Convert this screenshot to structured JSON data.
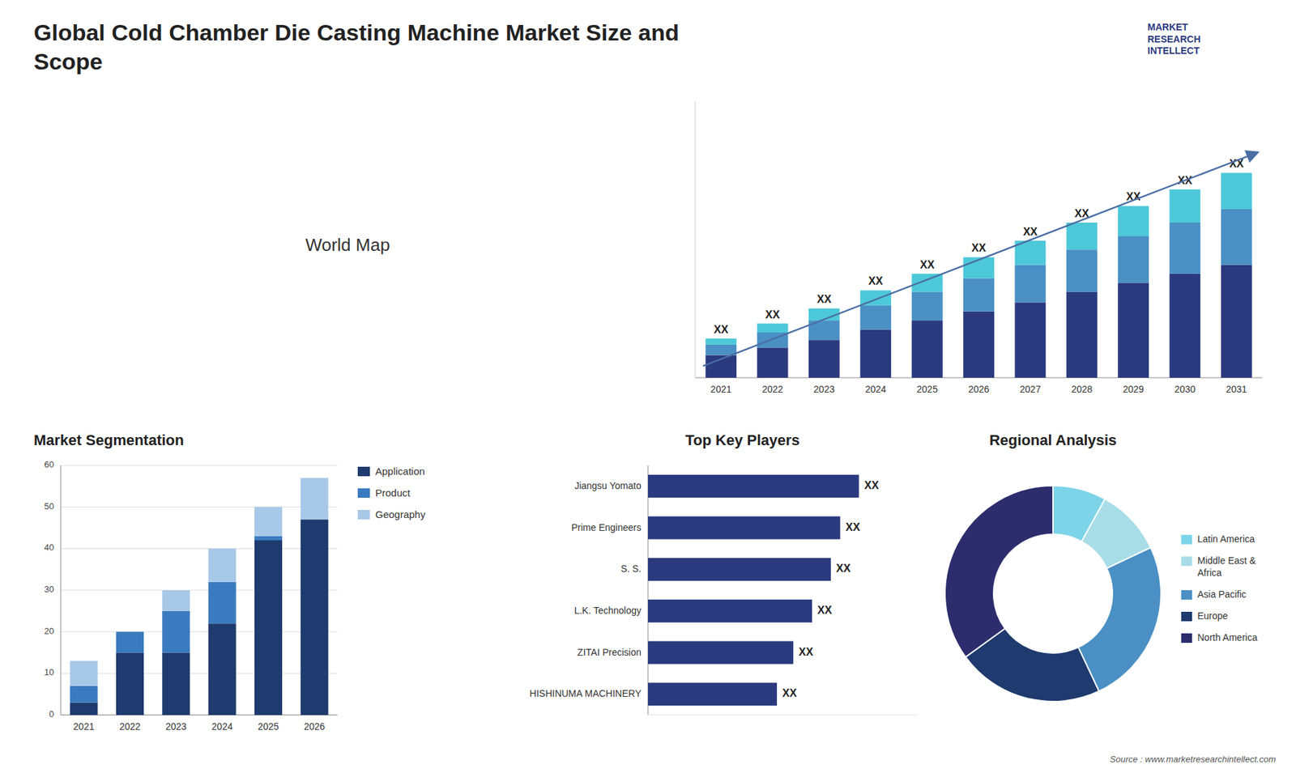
{
  "title": "Global Cold Chamber Die Casting Machine Market Size and\nScope",
  "annotations": [
    "MARKET\nRESEARCH\nINTELLECT",
    "Source : www.marketresearchintellect.com"
  ],
  "chart_data": [
    {
      "type": "map",
      "annotations": [
        "World Map"
      ]
    },
    {
      "type": "bar",
      "stacked": true,
      "categories": [
        "2021",
        "2022",
        "2023",
        "2024",
        "2025",
        "2026",
        "2027",
        "2028",
        "2029",
        "2030",
        "2031"
      ],
      "series": [
        {
          "color": "#2b3a7e",
          "values": [
            1.5,
            2.0,
            2.5,
            3.2,
            3.8,
            4.4,
            5.0,
            5.7,
            6.3,
            6.9,
            7.5
          ]
        },
        {
          "color": "#4a90c4",
          "values": [
            0.7,
            1.0,
            1.3,
            1.6,
            1.9,
            2.2,
            2.5,
            2.8,
            3.1,
            3.4,
            3.7
          ]
        },
        {
          "color": "#4dc8d8",
          "values": [
            0.4,
            0.6,
            0.8,
            1.0,
            1.2,
            1.4,
            1.6,
            1.8,
            2.0,
            2.2,
            2.4
          ]
        }
      ],
      "ylim": [
        0,
        18.36
      ],
      "tick_labels": "x",
      "grid": false,
      "annotations": [
        "XX",
        "XX",
        "XX",
        "XX",
        "XX",
        "XX",
        "XX",
        "XX",
        "XX",
        "XX",
        "XX"
      ]
    },
    {
      "type": "bar",
      "stacked": true,
      "title": "Market Segmentation",
      "categories": [
        "2021",
        "2022",
        "2023",
        "2024",
        "2025",
        "2026"
      ],
      "series": [
        {
          "name": "Application",
          "color": "#1e3a6e",
          "values": [
            3,
            15,
            15,
            22,
            42,
            47
          ]
        },
        {
          "name": "Product",
          "color": "#3a7bbf",
          "values": [
            4,
            5,
            10,
            10,
            1,
            0
          ]
        },
        {
          "name": "Geography",
          "color": "#a8c8e8",
          "values": [
            6,
            0,
            5,
            8,
            7,
            10
          ]
        }
      ],
      "ylim": [
        0,
        60
      ],
      "yticks": [
        0,
        10,
        20,
        30,
        40,
        50,
        60
      ],
      "grid": true,
      "legend": "right"
    },
    {
      "type": "bar",
      "orientation": "horizontal",
      "title": "Top Key Players",
      "categories": [
        "Jiangsu Yomato",
        "Prime Engineers",
        "S. S.",
        "L.K. Technology",
        "ZITAI Precision",
        "HISHINUMA MACHINERY"
      ],
      "values": [
        90,
        82,
        78,
        70,
        62,
        55
      ],
      "color": "#2b3a7e",
      "xlim": [
        0,
        115.2
      ],
      "tick_labels": "y",
      "annotations": [
        "XX",
        "XX",
        "XX",
        "XX",
        "XX",
        "XX"
      ]
    },
    {
      "type": "pie",
      "title": "Regional Analysis",
      "categories": [
        "Latin America",
        "Middle East &\nAfrica",
        "Asia Pacific",
        "Europe",
        "North America"
      ],
      "values": [
        8,
        10,
        25,
        22,
        35
      ],
      "colors": [
        "#7dd4e8",
        "#a8dde8",
        "#4a90c4",
        "#1e3a6e",
        "#2d2d6e"
      ],
      "legend": "right"
    }
  ]
}
